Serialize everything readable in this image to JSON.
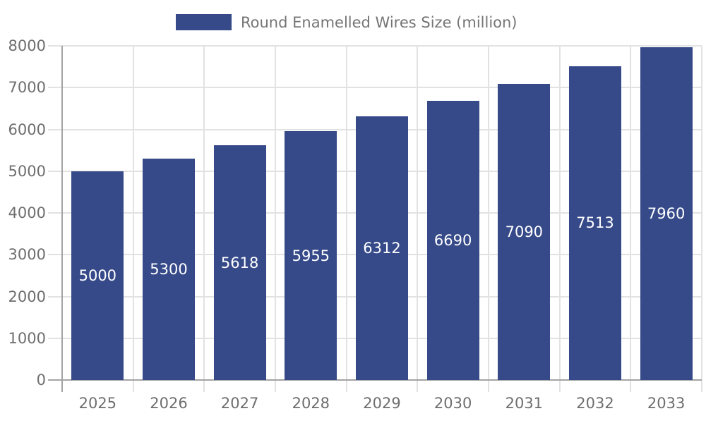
{
  "chart_data": {
    "type": "bar",
    "title": "Round Enamelled Wires Size (million)",
    "legend": [
      "Round Enamelled Wires Size (million)"
    ],
    "legend_position": "top-center",
    "categories": [
      "2025",
      "2026",
      "2027",
      "2028",
      "2029",
      "2030",
      "2031",
      "2032",
      "2033"
    ],
    "values": [
      5000,
      5300,
      5618,
      5955,
      6312,
      6690,
      7090,
      7513,
      7960
    ],
    "xlabel": "",
    "ylabel": "",
    "ylim": [
      0,
      8000
    ],
    "ytick_step": 1000,
    "ytick_labels": [
      "0",
      "1000",
      "2000",
      "3000",
      "4000",
      "5000",
      "6000",
      "7000",
      "8000"
    ],
    "grid": true,
    "bar_labels_inside": true
  },
  "colors": {
    "bar": "#364a8a",
    "bar_label": "#ffffff",
    "legend_text": "#757575",
    "tick_text": "#6e6e6e",
    "gridline": "#e2e2e2",
    "spine": "#a3a3a3",
    "background": "#ffffff"
  }
}
